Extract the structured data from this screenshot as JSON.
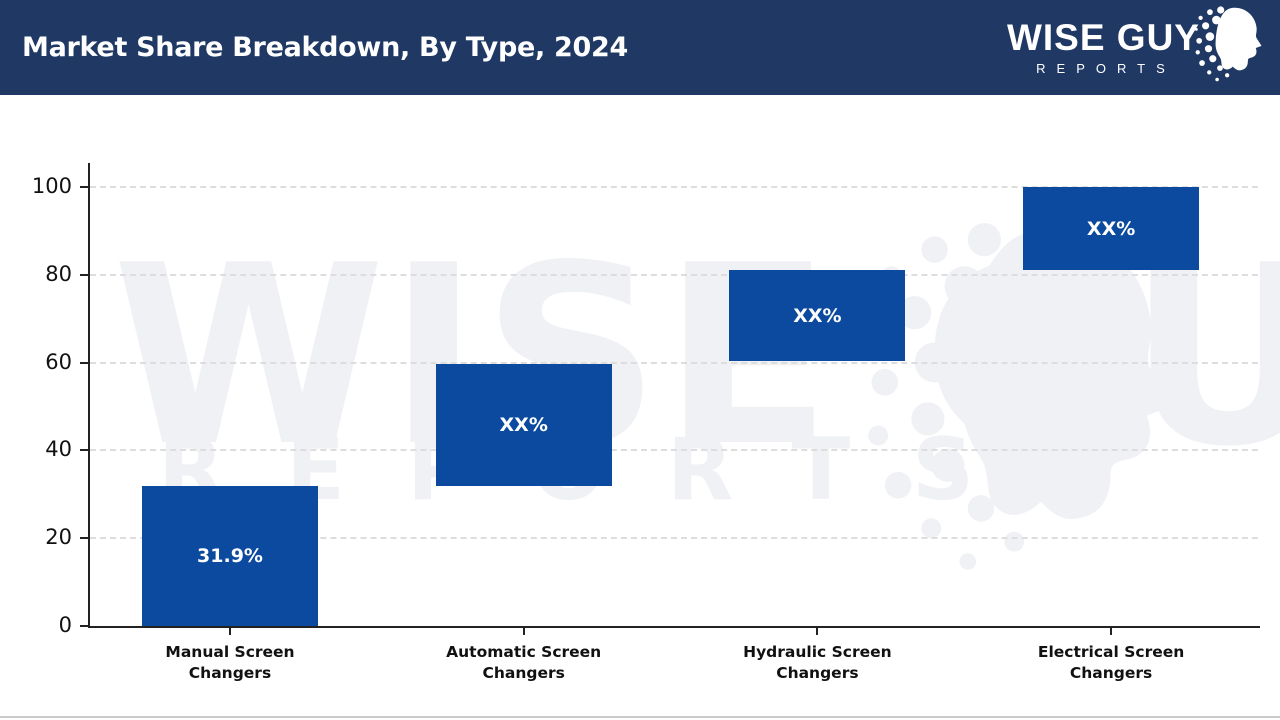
{
  "header": {
    "title": "Market Share Breakdown, By Type, 2024",
    "logo": {
      "name": "WISE GUY",
      "tagline": "REPORTS"
    }
  },
  "watermark": {
    "line1": "WISE GUY",
    "line2": "REPORTS"
  },
  "colors": {
    "header_bg": "#1F3864",
    "bar": "#0B4A9E",
    "bar_label": "#FFFFFF",
    "gridline": "#DDDDDD",
    "axis": "#222222",
    "watermark": "#F0F1F4"
  },
  "chart_data": {
    "type": "bar",
    "subtype": "floating-waterfall",
    "title": "Market Share Breakdown, By Type, 2024",
    "xlabel": "",
    "ylabel": "",
    "ylim": [
      0,
      100
    ],
    "yticks": [
      0,
      20,
      40,
      60,
      80,
      100
    ],
    "grid": "horizontal-dashed",
    "legend": "none",
    "bar_color": "#0B4A9E",
    "label_color": "#FFFFFF",
    "categories": [
      "Manual Screen Changers",
      "Automatic Screen Changers",
      "Hydraulic Screen Changers",
      "Electrical Screen Changers"
    ],
    "bars": [
      {
        "category": "Manual Screen Changers",
        "start": 0,
        "end": 31.9,
        "label": "31.9%"
      },
      {
        "category": "Automatic Screen Changers",
        "start": 31.9,
        "end": 59.7,
        "label": "XX%"
      },
      {
        "category": "Hydraulic Screen Changers",
        "start": 60.4,
        "end": 81.0,
        "label": "XX%"
      },
      {
        "category": "Electrical Screen Changers",
        "start": 81.0,
        "end": 100,
        "label": "XX%"
      }
    ]
  }
}
